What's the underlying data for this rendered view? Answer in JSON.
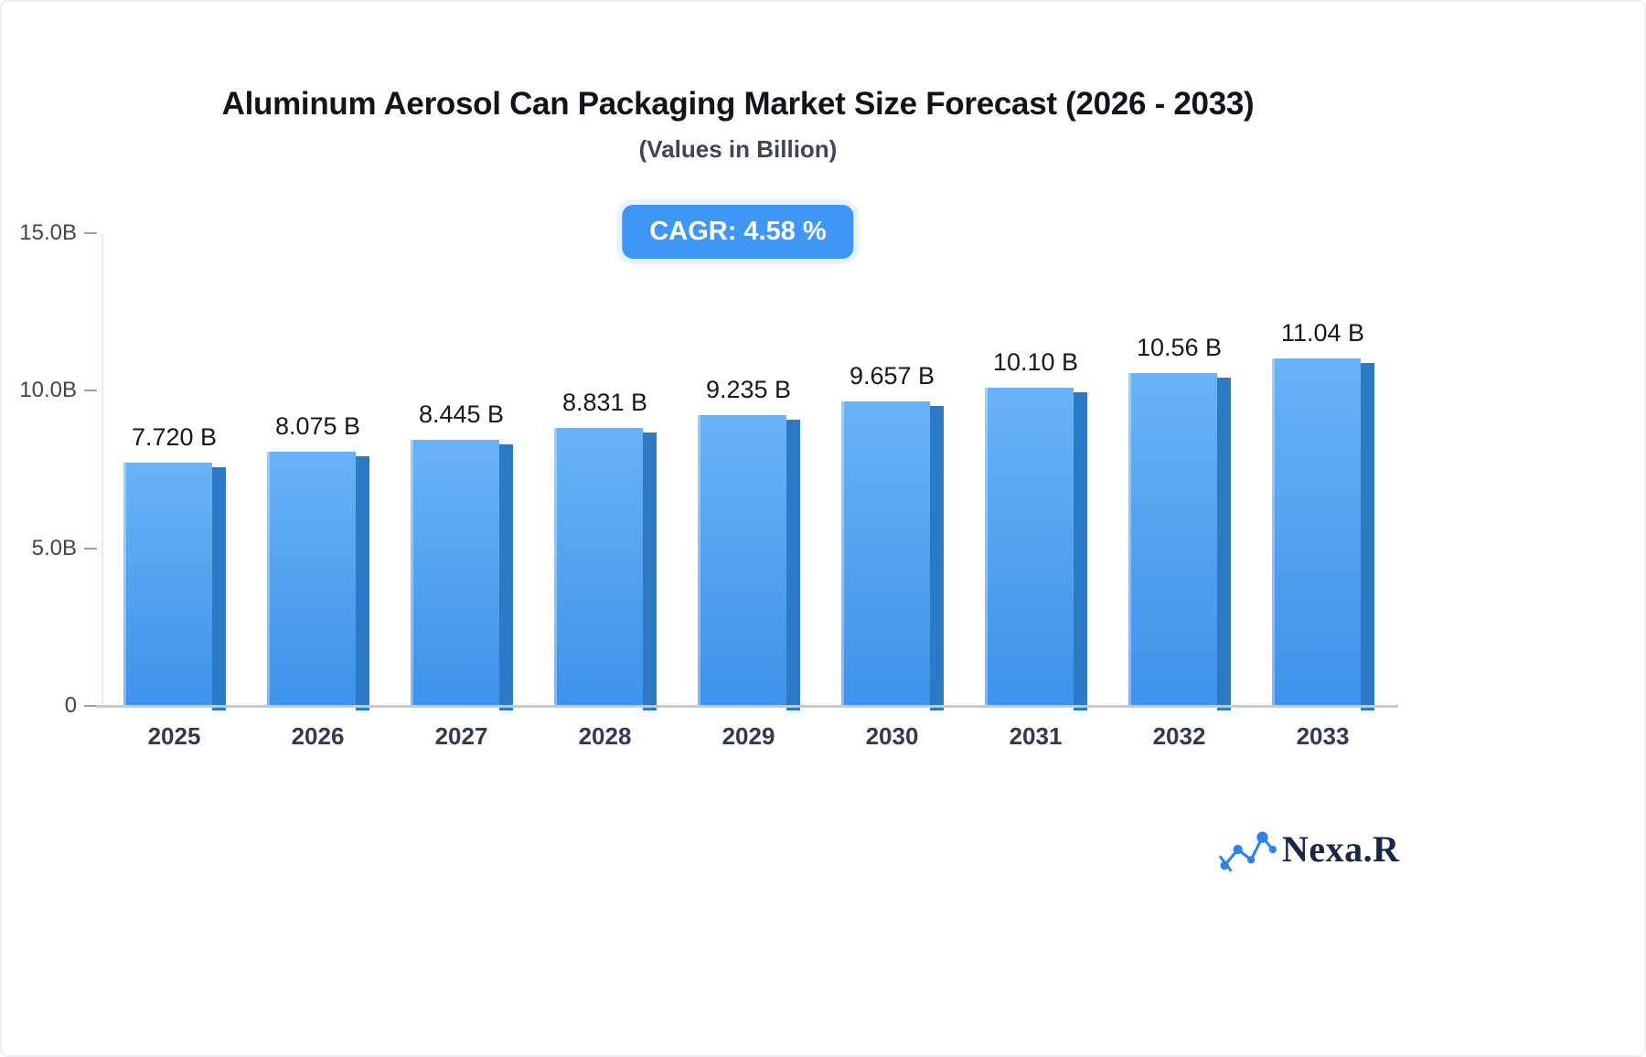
{
  "header": {
    "title": "Aluminum Aerosol Can Packaging Market Size Forecast (2026 - 2033)",
    "subtitle": "(Values in Billion)"
  },
  "badge": {
    "label": "CAGR: 4.58 %",
    "background": "#3e97f5",
    "text_color": "#ffffff"
  },
  "chart_data": {
    "type": "bar",
    "title": "Aluminum Aerosol Can Packaging Market Size Forecast (2026 - 2033)",
    "subtitle": "(Values in Billion)",
    "cagr": "4.58 %",
    "categories": [
      "2025",
      "2026",
      "2027",
      "2028",
      "2029",
      "2030",
      "2031",
      "2032",
      "2033"
    ],
    "values": [
      7.72,
      8.075,
      8.445,
      8.831,
      9.235,
      9.657,
      10.1,
      10.56,
      11.04
    ],
    "value_labels": [
      "7.720 B",
      "8.075 B",
      "8.445 B",
      "8.831 B",
      "9.235 B",
      "9.657 B",
      "10.10 B",
      "10.56 B",
      "11.04 B"
    ],
    "xlabel": "",
    "ylabel": "",
    "ylim": [
      0,
      15
    ],
    "yticks": [
      {
        "v": 0,
        "label": "0"
      },
      {
        "v": 5,
        "label": "5.0B"
      },
      {
        "v": 10,
        "label": "10.0B"
      },
      {
        "v": 15,
        "label": "15.0B"
      }
    ],
    "grid": false,
    "legend": false,
    "colors": {
      "bar_front_top": "#69b3f6",
      "bar_front_bottom": "#3e92ea",
      "bar_side": "#2c7ac6",
      "bar_highlight": "rgba(255,255,255,0.35)",
      "baseline": "#c6cad0",
      "tick_text": "#40464e"
    }
  },
  "branding": {
    "logo_text": "Nexa.R",
    "logo_text_color": "#182743",
    "icon_color": "#2d84e8"
  }
}
